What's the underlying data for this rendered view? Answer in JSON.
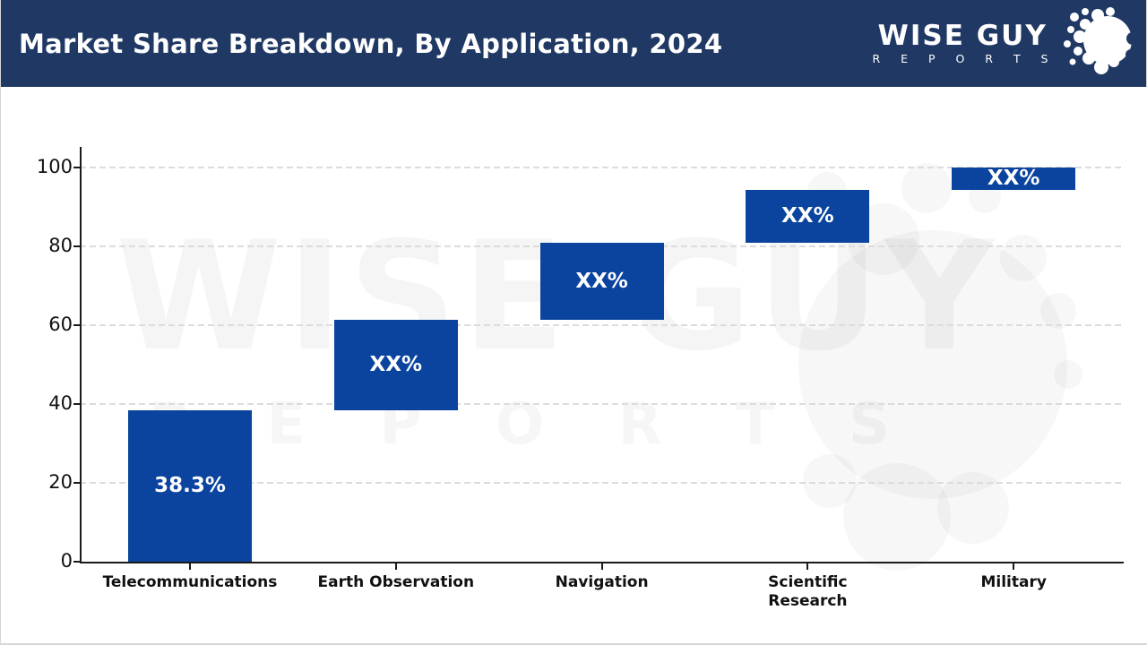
{
  "header": {
    "title": "Market Share Breakdown, By Application, 2024",
    "bg_color": "#203864",
    "logo": {
      "primary": "WISE GUY",
      "secondary": "R E P O R T S"
    }
  },
  "watermark": {
    "primary": "WISE GUY",
    "secondary": "R E P O R T S"
  },
  "chart_data": {
    "type": "bar",
    "subtype": "waterfall",
    "title": "Market Share Breakdown, By Application, 2024",
    "categories": [
      "Telecommunications",
      "Earth Observation",
      "Navigation",
      "Scientific\nResearch",
      "Military"
    ],
    "segments": [
      {
        "category": "Telecommunications",
        "start": 0,
        "end": 38.3,
        "label": "38.3%"
      },
      {
        "category": "Earth Observation",
        "start": 38.3,
        "end": 61.3,
        "label": "XX%"
      },
      {
        "category": "Navigation",
        "start": 61.3,
        "end": 80.8,
        "label": "XX%"
      },
      {
        "category": "Scientific\nResearch",
        "start": 80.8,
        "end": 94.3,
        "label": "XX%"
      },
      {
        "category": "Military",
        "start": 94.3,
        "end": 100,
        "label": "XX%"
      }
    ],
    "yticks": [
      0,
      20,
      40,
      60,
      80,
      100
    ],
    "ylim": [
      0,
      105
    ],
    "xlabel": "",
    "ylabel": "",
    "grid": "horizontal-dashed",
    "bar_color": "#0a449e",
    "bar_label_color": "#ffffff",
    "axis_color": "#1a1a1a"
  }
}
